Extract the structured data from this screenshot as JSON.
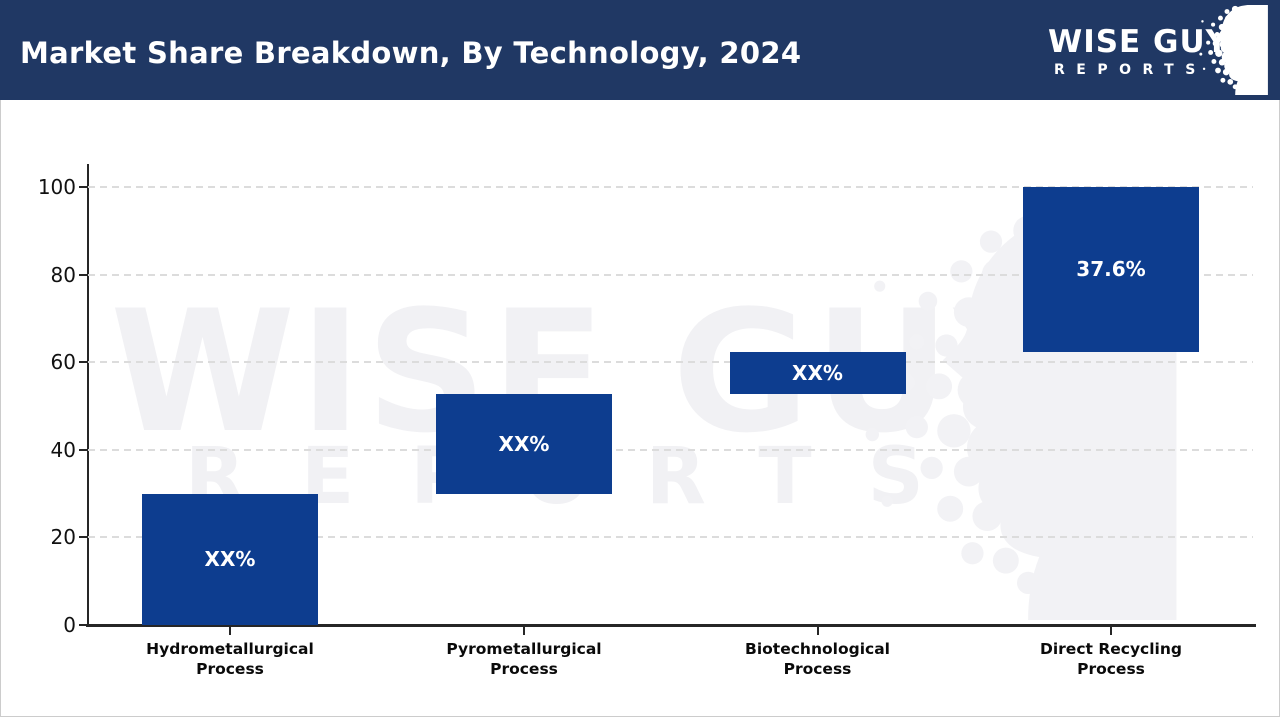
{
  "header": {
    "title": "Market Share Breakdown, By Technology, 2024",
    "logo": {
      "primary": "WISE GUY",
      "secondary": "REPORTS"
    }
  },
  "watermark": {
    "primary": "WISE GUY",
    "secondary": "REPORTS"
  },
  "chart_data": {
    "type": "bar",
    "subtype": "waterfall",
    "title": "Market Share Breakdown, By Technology, 2024",
    "categories": [
      "Hydrometallurgical Process",
      "Pyrometallurgical Process",
      "Biotechnological Process",
      "Direct Recycling Process"
    ],
    "segments": [
      {
        "category": "Hydrometallurgical Process",
        "start": 0,
        "end": 30,
        "value": 30,
        "value_label": "XX%"
      },
      {
        "category": "Pyrometallurgical Process",
        "start": 30,
        "end": 52.8,
        "value": 22.8,
        "value_label": "XX%"
      },
      {
        "category": "Biotechnological Process",
        "start": 52.8,
        "end": 62.4,
        "value": 9.6,
        "value_label": "XX%"
      },
      {
        "category": "Direct Recycling Process",
        "start": 62.4,
        "end": 100,
        "value": 37.6,
        "value_label": "37.6%"
      }
    ],
    "ylim": [
      0,
      105
    ],
    "yticks": [
      0,
      20,
      40,
      60,
      80,
      100
    ],
    "grid": "horizontal dashed",
    "legend": "none",
    "bar_color": "#0d3d8f",
    "bar_label_color": "#ffffff"
  },
  "colors": {
    "header_bg": "#203864",
    "bar": "#0d3d8f",
    "grid": "#dcdcdc",
    "axis": "#262626",
    "watermark": "#f1f1f4"
  }
}
